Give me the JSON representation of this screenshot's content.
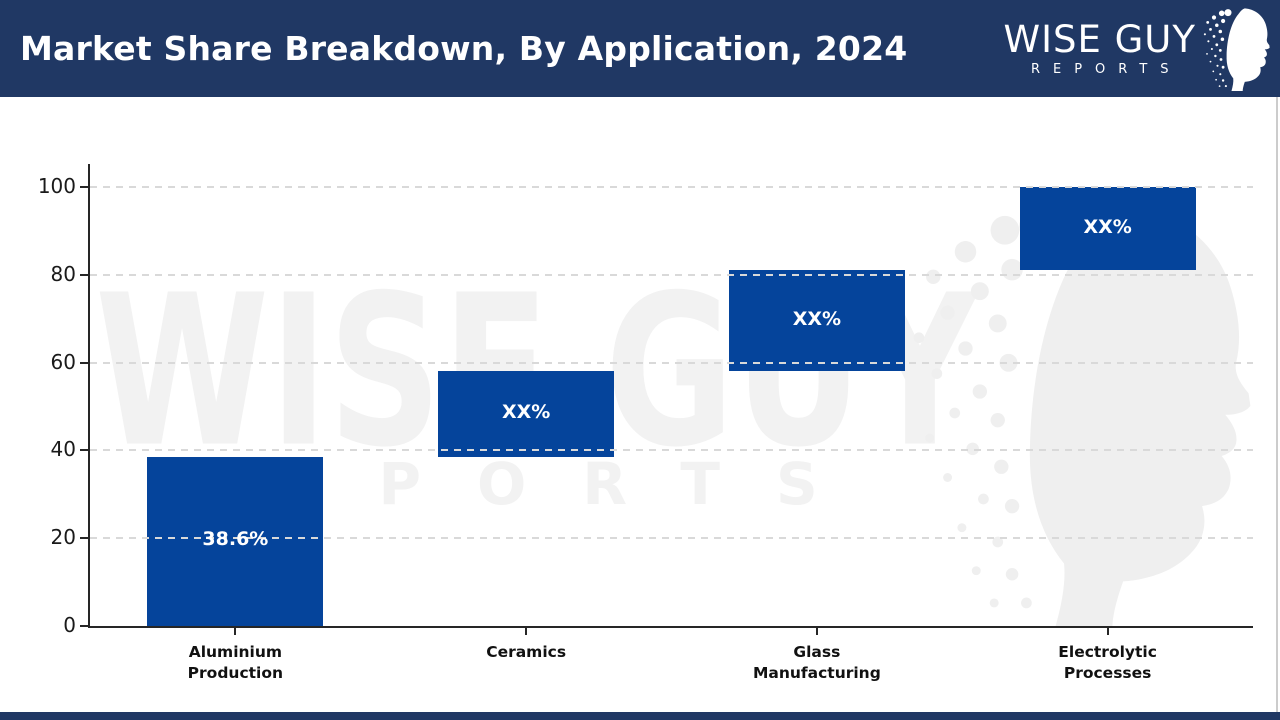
{
  "header": {
    "title": "Market Share Breakdown, By Application, 2024",
    "bg_color": "#203864",
    "logo": {
      "wordmark": "WISE GUY",
      "subtitle": "REPORTS"
    }
  },
  "watermark": {
    "line1": "WISE GUY",
    "line2": "REPORTS",
    "color": "#f2f2f2"
  },
  "chart_data": {
    "type": "bar",
    "subtype": "waterfall",
    "title": "Market Share Breakdown, By Application, 2024",
    "categories": [
      [
        "Aluminium",
        "Production"
      ],
      [
        "Ceramics"
      ],
      [
        "Glass",
        "Manufacturing"
      ],
      [
        "Electrolytic",
        "Processes"
      ]
    ],
    "series": [
      {
        "name": "Aluminium Production",
        "start": 0,
        "end": 38.6,
        "label": "38.6%"
      },
      {
        "name": "Ceramics",
        "start": 38.6,
        "end": 58,
        "label": "XX%"
      },
      {
        "name": "Glass Manufacturing",
        "start": 58,
        "end": 81,
        "label": "XX%"
      },
      {
        "name": "Electrolytic Processes",
        "start": 81,
        "end": 100,
        "label": "XX%"
      }
    ],
    "bar_color": "#05449b",
    "label_color": "#ffffff",
    "yticks": [
      0,
      20,
      40,
      60,
      80,
      100
    ],
    "ylim": [
      0,
      105
    ],
    "xlabel": "",
    "ylabel": "",
    "grid": "horizontal-dashed",
    "legend": "none"
  }
}
